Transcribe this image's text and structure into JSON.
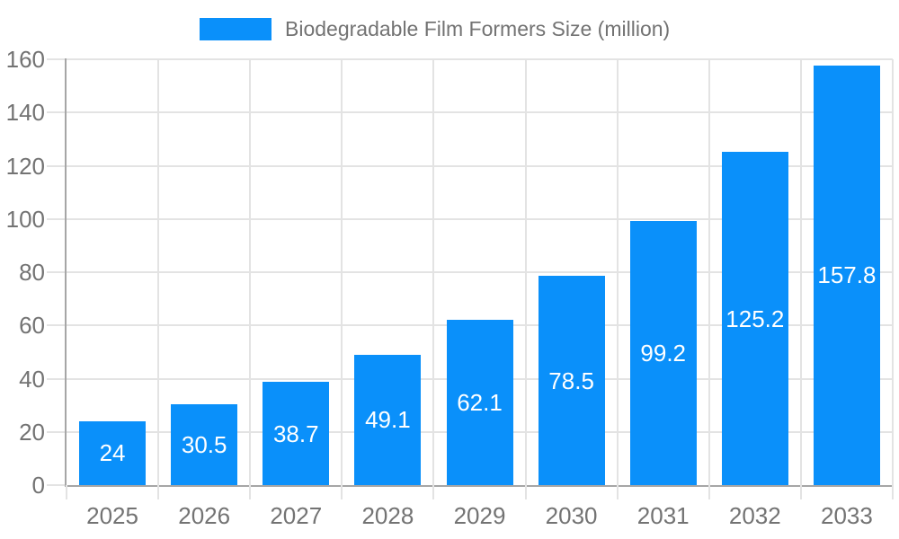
{
  "chart_data": {
    "type": "bar",
    "title": "Biodegradable Film Formers Size (million)",
    "categories": [
      "2025",
      "2026",
      "2027",
      "2028",
      "2029",
      "2030",
      "2031",
      "2032",
      "2033"
    ],
    "values": [
      24,
      30.5,
      38.7,
      49.1,
      62.1,
      78.5,
      99.2,
      125.2,
      157.8
    ],
    "xlabel": "",
    "ylabel": "",
    "ylim": [
      0,
      160
    ],
    "ytick_step": 20,
    "ytick_labels": [
      "0",
      "20",
      "40",
      "60",
      "80",
      "100",
      "120",
      "140",
      "160"
    ],
    "grid": true,
    "legend_position": "top-center",
    "value_labels_position": "inside-middle"
  },
  "colors": {
    "bar": "#0a90fa",
    "grid": "#e3e3e3",
    "axis": "#a6a6a6",
    "tick_text": "#737373",
    "legend_text": "#737373",
    "value_text": "#ffffff",
    "background": "#ffffff"
  }
}
